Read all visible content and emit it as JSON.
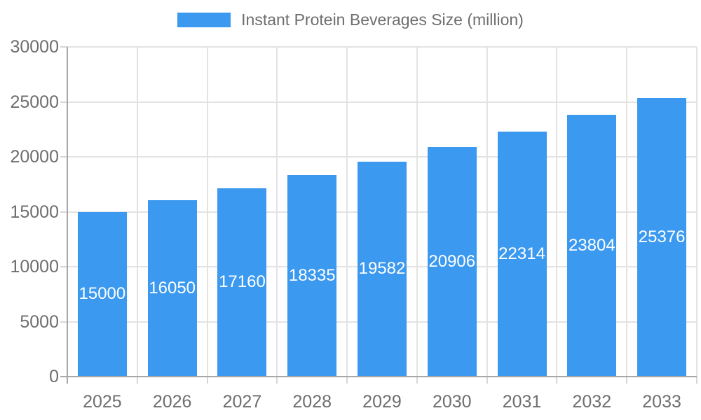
{
  "page": {
    "background": "#ffffff"
  },
  "colors": {
    "bar": "#3b99ef",
    "grid": "#e3e3e3",
    "axis": "#a8a8a8",
    "tick": "#d6d6d6",
    "label_text": "#6e6e6e",
    "value_text": "#ffffff",
    "background": "#ffffff"
  },
  "legend": {
    "items": [
      {
        "label": "Instant Protein Beverages Size (million)",
        "color": "#3b99ef"
      }
    ]
  },
  "chart_data": {
    "type": "bar",
    "title": "Instant Protein Beverages Size (million)",
    "series_name": "Instant Protein Beverages Size (million)",
    "categories": [
      "2025",
      "2026",
      "2027",
      "2028",
      "2029",
      "2030",
      "2031",
      "2032",
      "2033"
    ],
    "values": [
      15000,
      16050,
      17160,
      18335,
      19582,
      20906,
      22314,
      23804,
      25376
    ],
    "xlabel": "",
    "ylabel": "",
    "ylim": [
      0,
      30000
    ],
    "y_ticks": [
      0,
      5000,
      10000,
      15000,
      20000,
      25000,
      30000
    ],
    "grid": "horizontal-and-vertical",
    "legend_position": "top-center",
    "value_labels": "inside-center-white"
  }
}
